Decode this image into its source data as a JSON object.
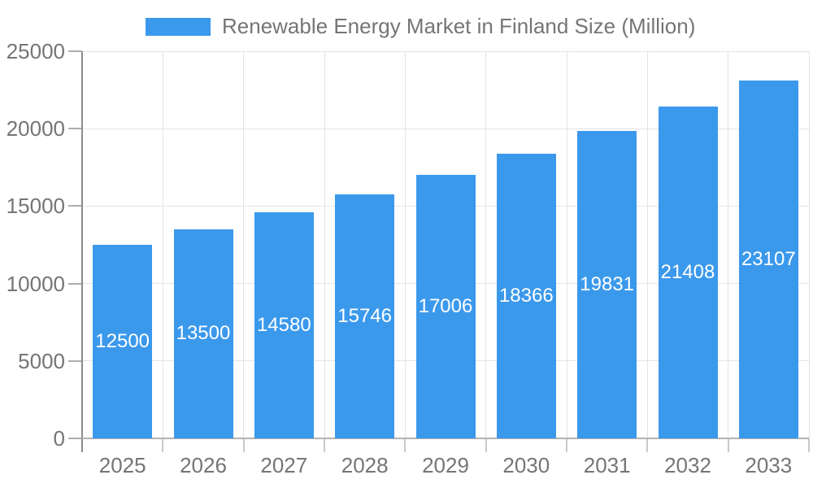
{
  "legend": {
    "label": "Renewable Energy Market in Finland Size (Million)"
  },
  "chart_data": {
    "type": "bar",
    "title": "Renewable Energy Market in Finland Size (Million)",
    "categories": [
      "2025",
      "2026",
      "2027",
      "2028",
      "2029",
      "2030",
      "2031",
      "2032",
      "2033"
    ],
    "values": [
      12500,
      13500,
      14580,
      15746,
      17006,
      18366,
      19831,
      21408,
      23107
    ],
    "xlabel": "",
    "ylabel": "",
    "ylim": [
      0,
      25000
    ],
    "yticks": [
      0,
      5000,
      10000,
      15000,
      20000,
      25000
    ],
    "grid": true,
    "legend_position": "top-center",
    "value_label_position": "inside-middle",
    "colors": {
      "bar": "#3B99EC",
      "axis_text": "#757575",
      "value_text": "#FFFFFF",
      "gridline": "#E4E4E4",
      "axis_line": "#8C8C8C",
      "baseline": "#B3B3B3",
      "tick": "#C9C9C9"
    }
  }
}
